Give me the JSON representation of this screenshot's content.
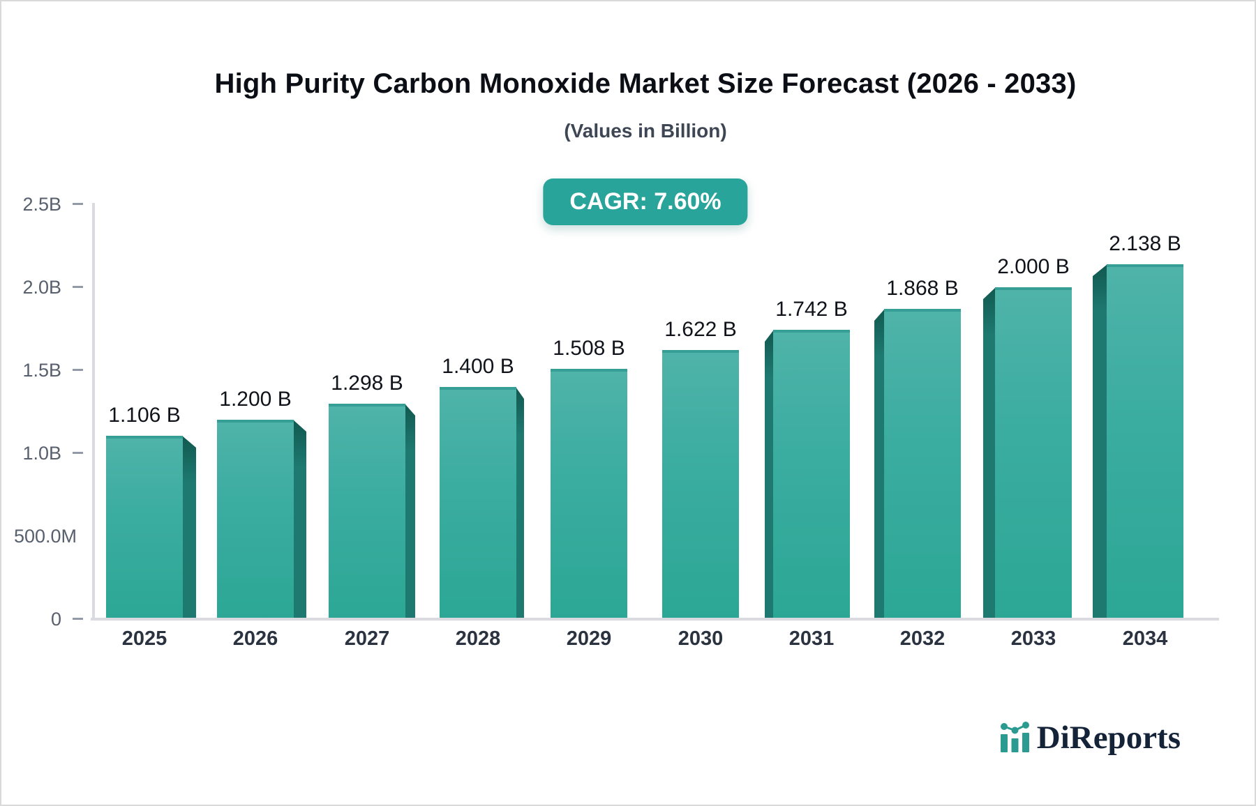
{
  "page": {
    "background": "#ffffff",
    "border_color": "#d9d9d9"
  },
  "header": {
    "title": "High Purity Carbon Monoxide Market Size Forecast (2026 - 2033)",
    "subtitle": "(Values in Billion)",
    "cagr_badge": "CAGR: 7.60%"
  },
  "chart_data": {
    "type": "bar",
    "title": "High Purity Carbon Monoxide Market Size Forecast (2026 - 2033)",
    "subtitle": "(Values in Billion)",
    "categories": [
      "2025",
      "2026",
      "2027",
      "2028",
      "2029",
      "2030",
      "2031",
      "2032",
      "2033",
      "2034"
    ],
    "values": [
      1.106,
      1.2,
      1.298,
      1.4,
      1.508,
      1.622,
      1.742,
      1.868,
      2.0,
      2.138
    ],
    "value_labels": [
      "1.106 B",
      "1.200 B",
      "1.298 B",
      "1.400 B",
      "1.508 B",
      "1.622 B",
      "1.742 B",
      "1.868 B",
      "2.000 B",
      "2.138 B"
    ],
    "xlabel": "",
    "ylabel": "",
    "ylim": [
      0,
      2.5
    ],
    "yticks": [
      {
        "label": "2.5B",
        "value": 2.5,
        "dash": true
      },
      {
        "label": "2.0B",
        "value": 2.0,
        "dash": true
      },
      {
        "label": "1.5B",
        "value": 1.5,
        "dash": true
      },
      {
        "label": "1.0B",
        "value": 1.0,
        "dash": true
      },
      {
        "label": "500.0M",
        "value": 0.5,
        "dash": false
      },
      {
        "label": "0",
        "value": 0.0,
        "dash": true
      }
    ],
    "grid": false,
    "legend": false,
    "style": "3d-perspective-bars",
    "colors": {
      "bar_face_top": "#4fb3a9",
      "bar_face_bottom": "#2ca795",
      "bar_top_cap": "#359f95",
      "bar_side": "#1e7a71",
      "bar_side_dark": "#11584f",
      "axis_line": "#d9dbe0",
      "tick_text": "#58606e",
      "category_text": "#2b3340",
      "value_text": "#10141a",
      "badge": "#28a49a"
    }
  },
  "branding": {
    "logo_text": "DiReports",
    "logo_icon": "mini-bar-line-chart-icon",
    "logo_teal": "#2b9b91",
    "logo_navy": "#152338"
  }
}
